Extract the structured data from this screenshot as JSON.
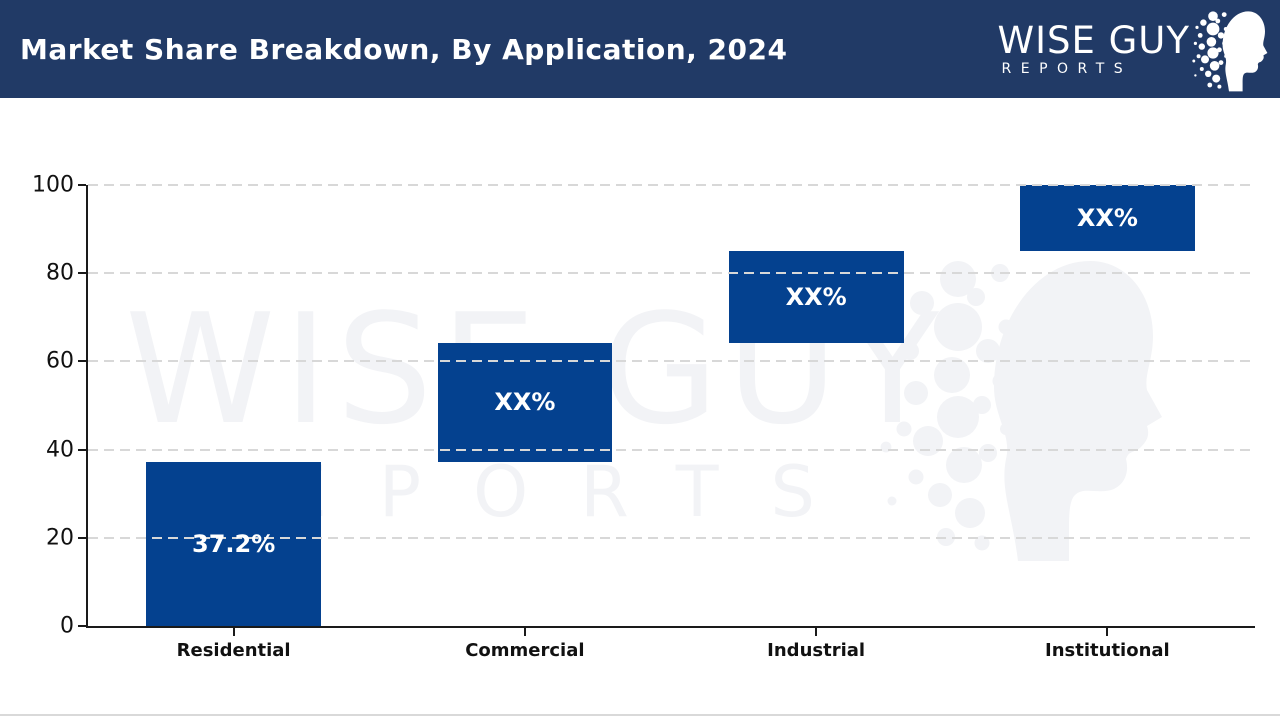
{
  "colors": {
    "header_bg": "#213a66",
    "bar": "#04418f",
    "bar_label": "#ffffff",
    "grid": "#d8d8d8",
    "axis": "#1a1a1a",
    "watermark": "#f2f3f6",
    "text": "#111111"
  },
  "header": {
    "title": "Market Share Breakdown, By Application, 2024",
    "logo": {
      "line1": "WISE GUY",
      "line2": "REPORTS"
    }
  },
  "watermark": {
    "line1": "WISE GUY",
    "line2": "REPORTS"
  },
  "chart_data": {
    "type": "bar",
    "subtype": "waterfall-floating-bars",
    "title": "Market Share Breakdown, By Application, 2024",
    "categories": [
      "Residential",
      "Commercial",
      "Industrial",
      "Institutional"
    ],
    "segments": [
      {
        "category": "Residential",
        "start": 0,
        "end": 37.2,
        "label": "37.2%"
      },
      {
        "category": "Commercial",
        "start": 37.2,
        "end": 64.2,
        "label": "XX%"
      },
      {
        "category": "Industrial",
        "start": 64.2,
        "end": 85.0,
        "label": "XX%"
      },
      {
        "category": "Institutional",
        "start": 85.0,
        "end": 100.0,
        "label": "XX%"
      }
    ],
    "xlabel": "",
    "ylabel": "",
    "ylim": [
      0,
      100
    ],
    "yticks": [
      0,
      20,
      40,
      60,
      80,
      100
    ],
    "grid": "horizontal-dashed, drawn above bars",
    "legend": "none",
    "bar_width_fraction": 0.6
  }
}
